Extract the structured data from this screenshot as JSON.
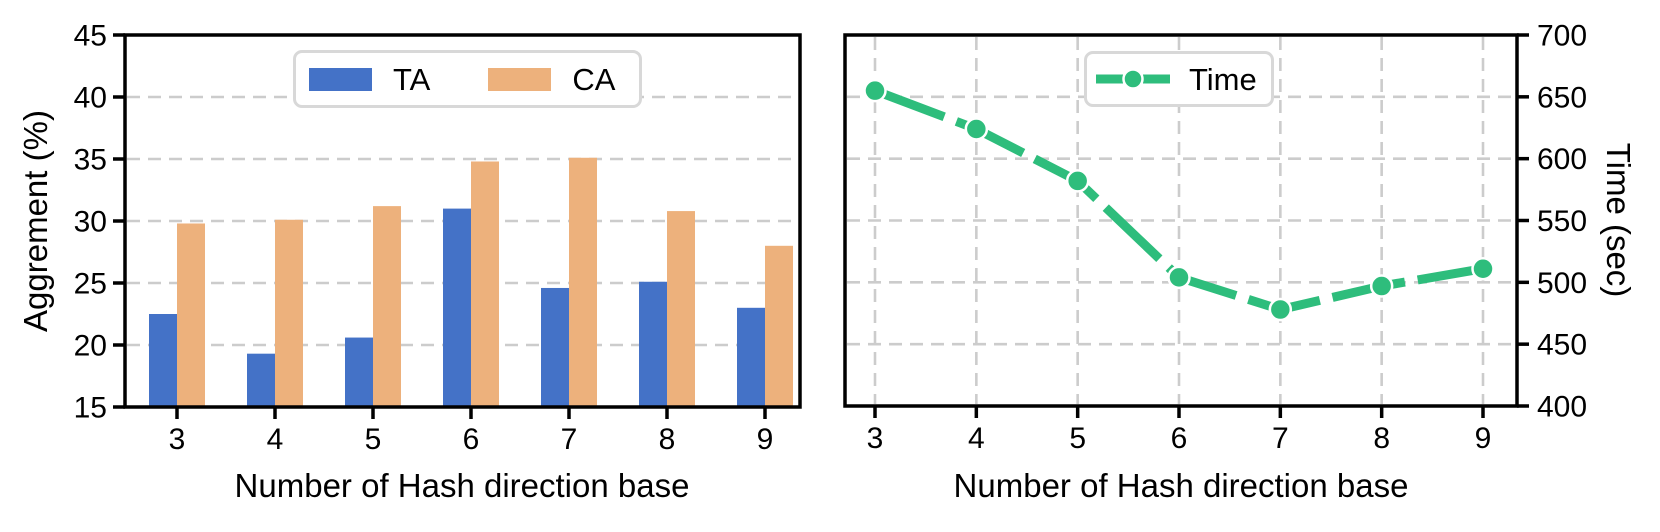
{
  "chart_data": [
    {
      "type": "bar",
      "panel": "left",
      "title": "",
      "xlabel": "Number of Hash direction base",
      "ylabel": "Aggrement (%)",
      "categories": [
        "3",
        "4",
        "5",
        "6",
        "7",
        "8",
        "9"
      ],
      "series": [
        {
          "name": "TA",
          "color": "#4472C7",
          "values": [
            22.5,
            19.3,
            20.6,
            31.0,
            24.6,
            25.1,
            23.0
          ]
        },
        {
          "name": "CA",
          "color": "#EDB17C",
          "values": [
            29.8,
            30.1,
            31.2,
            34.8,
            35.1,
            30.8,
            28.0
          ]
        }
      ],
      "ylim": [
        15,
        45
      ],
      "yticks": [
        15,
        20,
        25,
        30,
        35,
        40,
        45
      ],
      "grid": {
        "horizontal": true,
        "vertical": false,
        "style": "dashed"
      },
      "legend": {
        "position": "upper center",
        "labels": [
          "TA",
          "CA"
        ]
      }
    },
    {
      "type": "line",
      "panel": "right",
      "title": "",
      "xlabel": "Number of Hash direction base",
      "ylabel": "Time (sec)",
      "x": [
        "3",
        "4",
        "5",
        "6",
        "7",
        "8",
        "9"
      ],
      "series": [
        {
          "name": "Time",
          "color": "#2EBD7C",
          "values": [
            655,
            624,
            582,
            504,
            478,
            497,
            511
          ],
          "linestyle": "dashed",
          "marker": "circle"
        }
      ],
      "ylim": [
        400,
        700
      ],
      "yticks": [
        400,
        450,
        500,
        550,
        600,
        650,
        700
      ],
      "y_axis_side": "right",
      "grid": {
        "horizontal": true,
        "vertical": true,
        "style": "dashed"
      },
      "legend": {
        "position": "upper center",
        "labels": [
          "Time"
        ]
      }
    }
  ],
  "style": {
    "background": "#ffffff",
    "axis_color": "#000000",
    "grid_color": "#cccccc",
    "legend_border_color": "#d8d8d8",
    "tick_label_color": "#000000"
  }
}
